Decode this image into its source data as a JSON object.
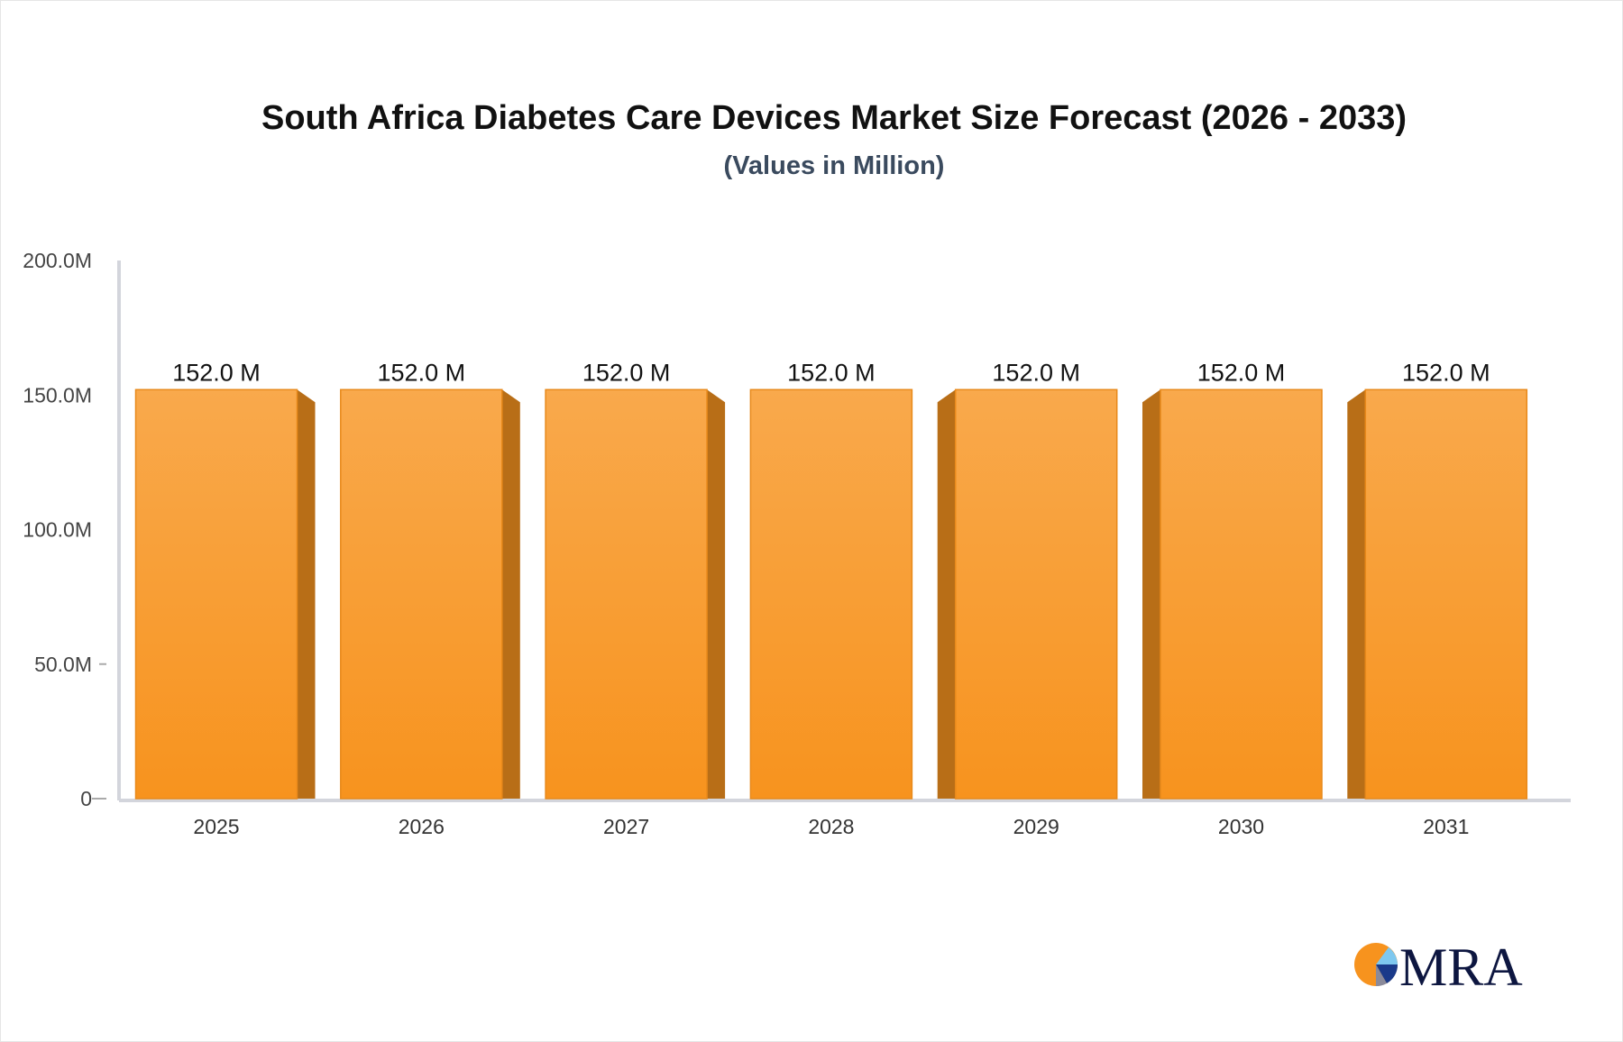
{
  "chart_data": {
    "type": "bar",
    "title": "South Africa Diabetes Care Devices Market Size Forecast (2026 - 2033)",
    "subtitle": "(Values in Million)",
    "categories": [
      "2025",
      "2026",
      "2027",
      "2028",
      "2029",
      "2030",
      "2031"
    ],
    "values": [
      152.0,
      152.0,
      152.0,
      152.0,
      152.0,
      152.0,
      152.0
    ],
    "data_labels": [
      "152.0 M",
      "152.0 M",
      "152.0 M",
      "152.0 M",
      "152.0 M",
      "152.0 M",
      "152.0 M"
    ],
    "ylim": [
      0,
      200
    ],
    "yticks": [
      0,
      50,
      100,
      150,
      200
    ],
    "ytick_labels": [
      "0",
      "50.0M",
      "100.0M",
      "150.0M",
      "200.0M"
    ],
    "xlabel": "",
    "ylabel": "",
    "grid": false,
    "bar_style": "3d",
    "colors": {
      "bar_top": "#f9a94c",
      "bar_bottom": "#f7931e",
      "bar_side": "#b86e17",
      "axis": "#d3d5dc"
    }
  },
  "logo": {
    "text": "MRA",
    "colors": {
      "orange": "#f7931e",
      "light_blue": "#7ec8ef",
      "navy": "#1a3a8a",
      "text": "#0d1640"
    }
  }
}
